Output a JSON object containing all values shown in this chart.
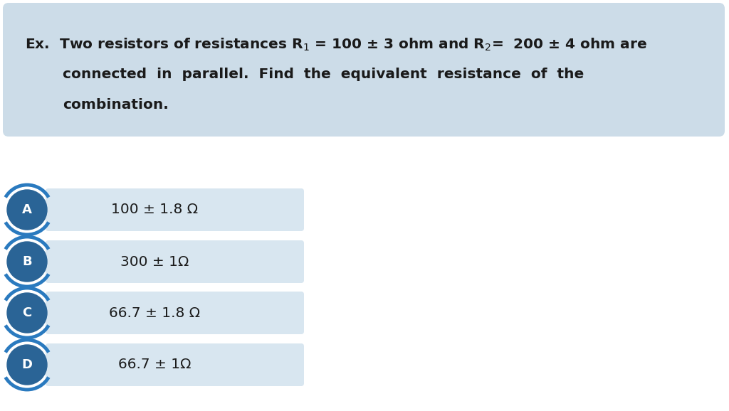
{
  "background_color": "#ffffff",
  "question_box_color": "#ccdce8",
  "option_box_color": "#d8e6f0",
  "option_label_bg": "#2a6496",
  "option_label_fg": "#ffffff",
  "option_text_color": "#1a1a1a",
  "question_text_color": "#1a1a1a",
  "font_size_question": 14.5,
  "font_size_options": 14.5,
  "font_size_label": 13,
  "options": [
    {
      "label": "A",
      "text": "100 ± 1.8 Ω"
    },
    {
      "label": "B",
      "text": "300 ± 1Ω"
    },
    {
      "label": "C",
      "text": "66.7 ± 1.8 Ω"
    },
    {
      "label": "D",
      "text": "66.7 ± 1Ω"
    }
  ]
}
